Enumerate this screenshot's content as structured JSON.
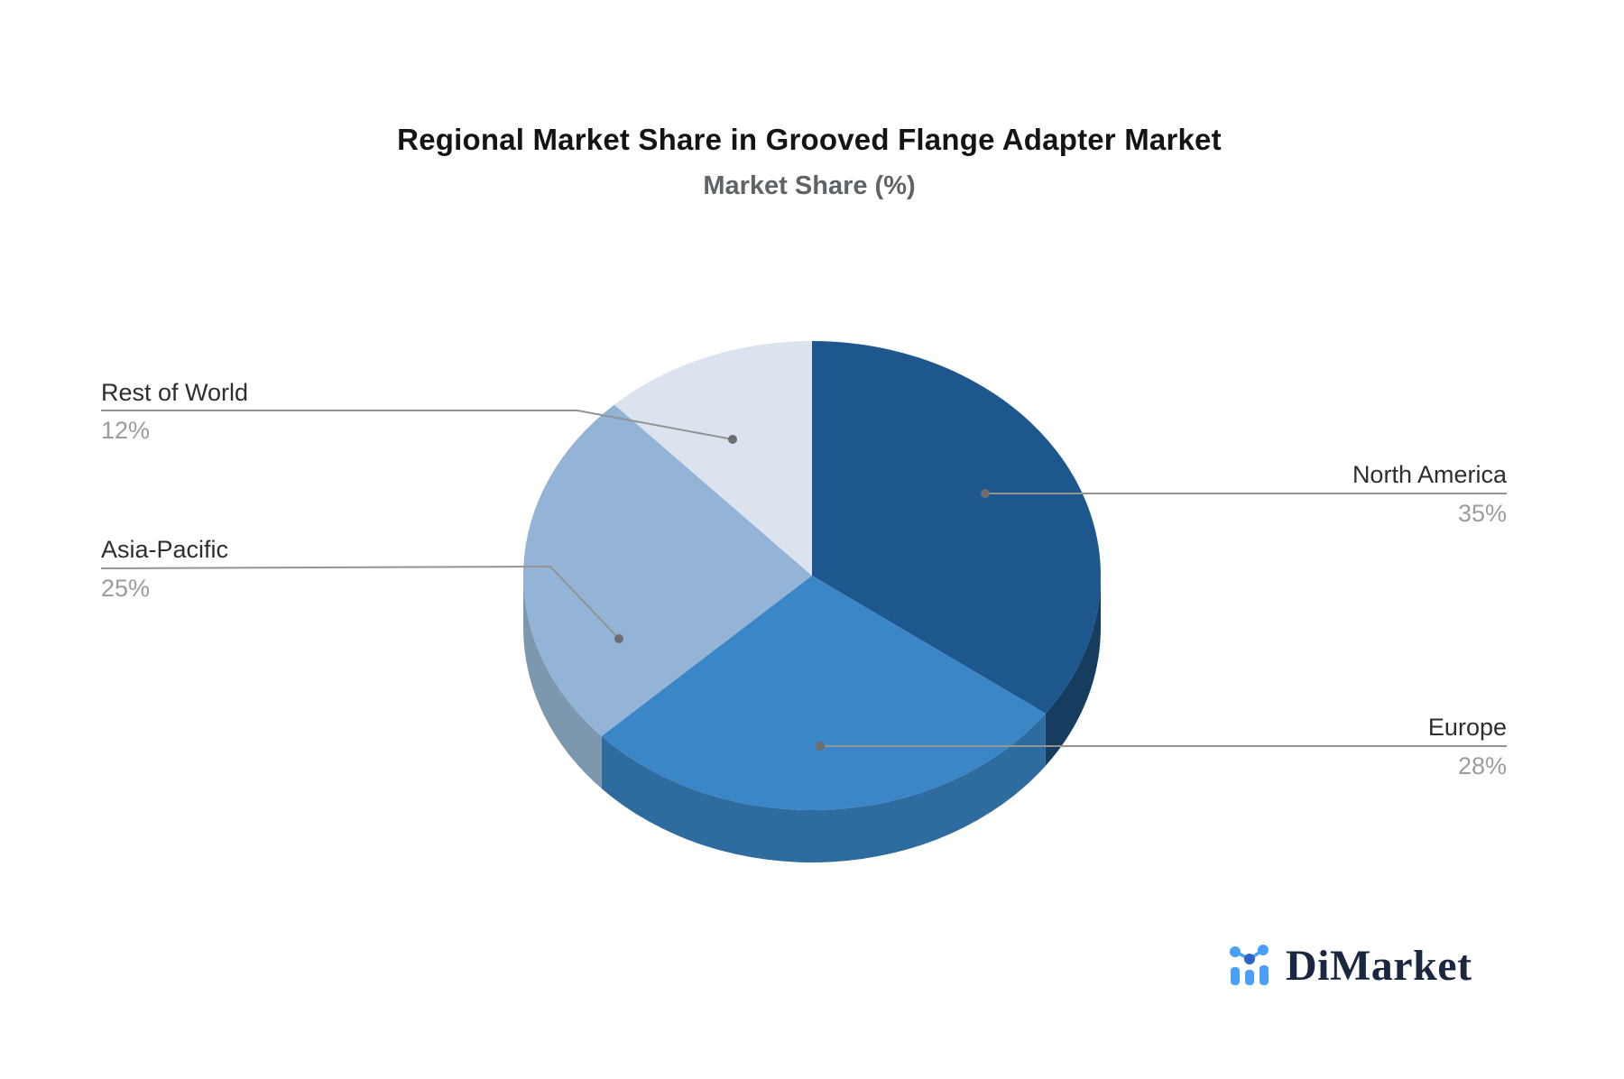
{
  "title": "Regional Market Share in Grooved Flange Adapter Market",
  "subtitle": "Market Share (%)",
  "chart_data": {
    "type": "pie",
    "title": "Regional Market Share in Grooved Flange Adapter Market",
    "subtitle": "Market Share (%)",
    "unit": "%",
    "style_3d": true,
    "direction": "clockwise",
    "start_angle_deg": 0,
    "legend": "none",
    "categories": [
      "North America",
      "Europe",
      "Asia-Pacific",
      "Rest of World"
    ],
    "values": [
      35,
      28,
      25,
      12
    ],
    "slices": [
      {
        "label": "North America",
        "value": 35,
        "pct": "35%",
        "color": "#1d578d",
        "side_color": "#163d60"
      },
      {
        "label": "Europe",
        "value": 28,
        "pct": "28%",
        "color": "#3b86c6",
        "side_color": "#2e6b9e"
      },
      {
        "label": "Asia-Pacific",
        "value": 25,
        "pct": "25%",
        "color": "#93b4d7",
        "side_color": "#7d97ae"
      },
      {
        "label": "Rest of World",
        "value": 12,
        "pct": "12%",
        "color": "#dbe3ee",
        "side_color": "#b9c5d7"
      }
    ],
    "label_line_color": "#949494",
    "label_dot_color": "#6d6d6d",
    "label_text_color": "#2e2e2e",
    "pct_text_color": "#9c9c9c",
    "background_color": "#ffffff"
  },
  "logo": {
    "text": "DiMarket",
    "icon": "bar-chart-icon",
    "icon_bar_color": "#49a0f6",
    "icon_dot_color": "#2c63c8",
    "text_color": "#1b2740"
  }
}
